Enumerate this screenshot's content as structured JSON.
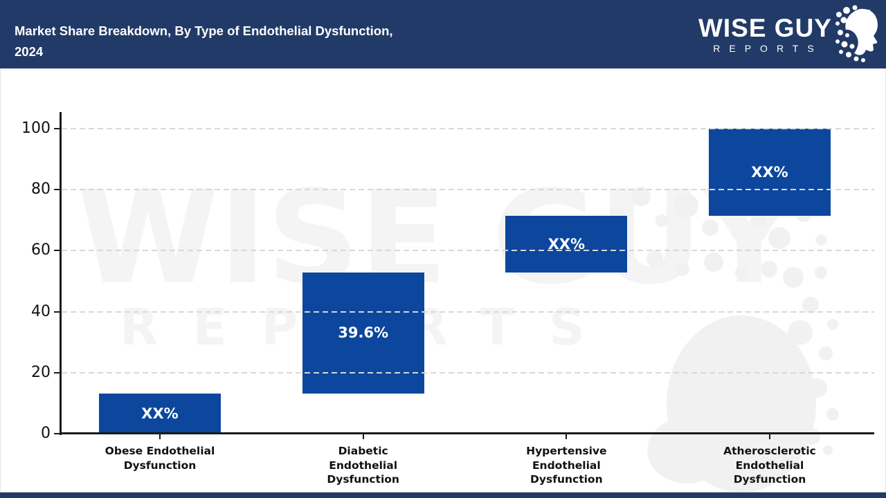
{
  "header": {
    "title_line1": "Market Share Breakdown, By Type of Endothelial Dysfunction,",
    "title_line2": "2024",
    "logo": {
      "line1": "WISE GUY",
      "line2": "REPORTS"
    }
  },
  "watermark": {
    "line1": "WISE GUY",
    "line2": "REPORTS"
  },
  "chart_data": {
    "type": "bar",
    "subtype": "floating-waterfall-bars",
    "title": "Market Share Breakdown, By Type of Endothelial Dysfunction, 2024",
    "categories": [
      "Obese Endothelial Dysfunction",
      "Diabetic Endothelial Dysfunction",
      "Hypertensive Endothelial Dysfunction",
      "Atherosclerotic Endothelial Dysfunction"
    ],
    "category_display_lines": [
      [
        "Obese Endothelial",
        "Dysfunction"
      ],
      [
        "Diabetic",
        "Endothelial",
        "Dysfunction"
      ],
      [
        "Hypertensive",
        "Endothelial",
        "Dysfunction"
      ],
      [
        "Atherosclerotic",
        "Endothelial",
        "Dysfunction"
      ]
    ],
    "bars": [
      {
        "label": "XX%",
        "start": 0,
        "end": 13.2
      },
      {
        "label": "39.6%",
        "start": 13.2,
        "end": 52.8
      },
      {
        "label": "XX%",
        "start": 52.8,
        "end": 71.4
      },
      {
        "label": "XX%",
        "start": 71.4,
        "end": 100
      }
    ],
    "xlabel": "",
    "ylabel": "",
    "ylim": [
      0,
      100
    ],
    "yticks": [
      0,
      20,
      40,
      60,
      80,
      100
    ],
    "grid": "horizontal-dashed",
    "legend": "none",
    "bar_color": "#0C479D"
  },
  "colors": {
    "header_bg": "#223A67",
    "footer_bg": "#223A67",
    "bar": "#0C479D",
    "grid": "#D8D8D8",
    "axis": "#1A1A1A",
    "watermark": "#F4F4F4",
    "edge_border": "#E3E3E3"
  }
}
